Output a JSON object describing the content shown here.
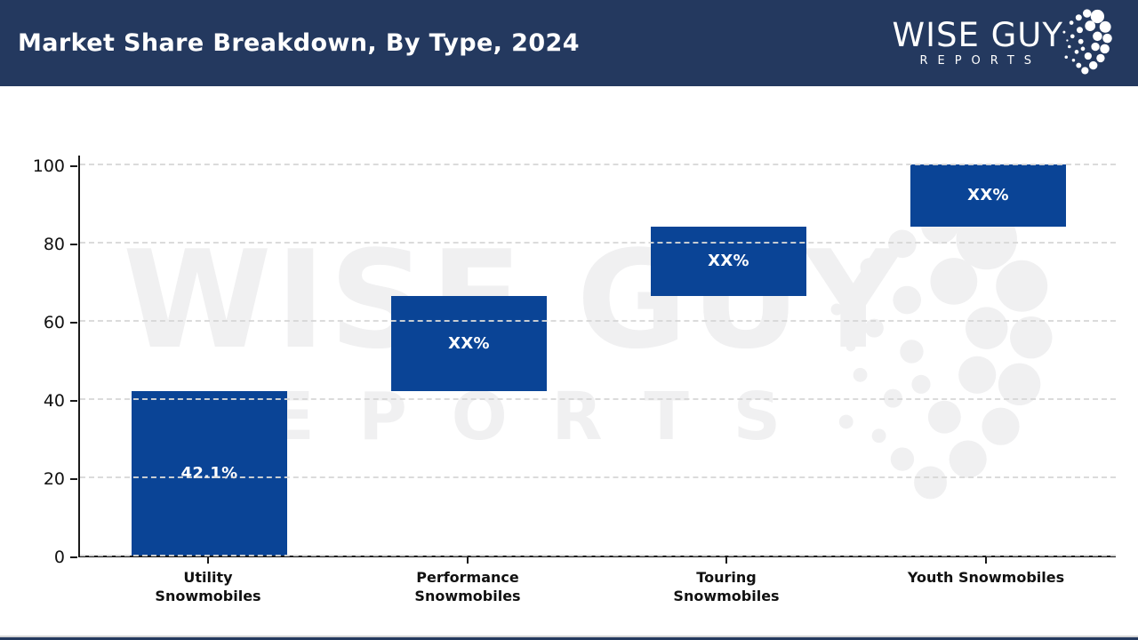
{
  "header": {
    "title": "Market Share Breakdown, By Type, 2024",
    "background_color": "#24395f",
    "logo": {
      "line1": "WISE GUY",
      "line2": "REPORTS"
    }
  },
  "watermark": {
    "line1": "WISE GUY",
    "line2": "REPORTS"
  },
  "chart_data": {
    "type": "bar",
    "subtype": "stacked-waterfall",
    "title": "Market Share Breakdown, By Type, 2024",
    "categories": [
      "Utility\nSnowmobiles",
      "Performance\nSnowmobiles",
      "Touring\nSnowmobiles",
      "Youth Snowmobiles"
    ],
    "segments": [
      {
        "category": "Utility Snowmobiles",
        "start": 0,
        "end": 42.1,
        "label": "42.1%"
      },
      {
        "category": "Performance Snowmobiles",
        "start": 42.1,
        "end": 66.4,
        "label": "XX%"
      },
      {
        "category": "Touring Snowmobiles",
        "start": 66.4,
        "end": 84.2,
        "label": "XX%"
      },
      {
        "category": "Youth Snowmobiles",
        "start": 84.2,
        "end": 100,
        "label": "XX%"
      }
    ],
    "xlabel": "",
    "ylabel": "",
    "ylim": [
      0,
      100
    ],
    "yticks": [
      0,
      20,
      40,
      60,
      80,
      100
    ],
    "grid": "horizontal-dashed-above-bars",
    "legend": "none",
    "bar_color": "#0a4496",
    "bar_label_color": "#ffffff",
    "axis_color": "#1a1a1a",
    "gridline_color": "#d8d8d8"
  }
}
